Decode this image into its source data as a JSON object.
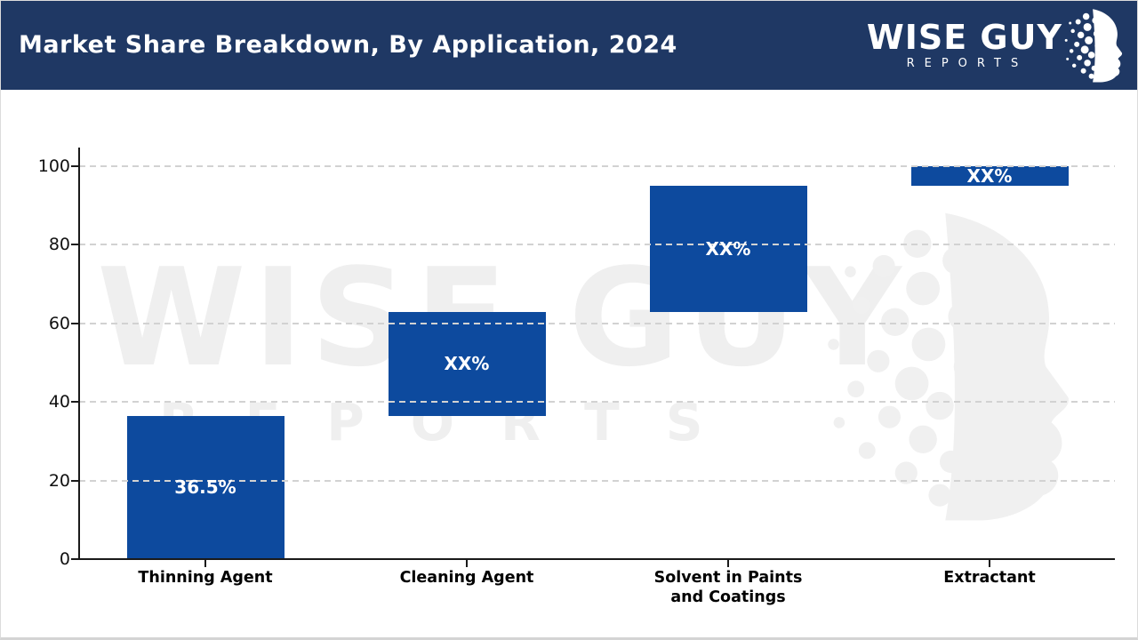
{
  "header": {
    "title": "Market Share Breakdown, By Application, 2024",
    "logo": {
      "line1": "WISE GUY",
      "line2": "REPORTS"
    }
  },
  "watermark": {
    "line1": "WISE GUY",
    "line2": "REPORTS"
  },
  "chart_data": {
    "type": "bar",
    "variant": "waterfall-stacked-segments",
    "title": "Market Share Breakdown, By Application, 2024",
    "categories": [
      "Thinning Agent",
      "Cleaning Agent",
      "Solvent in Paints\nand Coatings",
      "Extractant"
    ],
    "segments": [
      {
        "category": "Thinning Agent",
        "start": 0,
        "end": 36.5,
        "label": "36.5%"
      },
      {
        "category": "Cleaning Agent",
        "start": 36.5,
        "end": 63,
        "label": "XX%"
      },
      {
        "category": "Solvent in Paints and Coatings",
        "start": 63,
        "end": 95,
        "label": "XX%"
      },
      {
        "category": "Extractant",
        "start": 95,
        "end": 100,
        "label": "XX%"
      }
    ],
    "xlabel": "",
    "ylabel": "",
    "y_ticks": [
      0,
      20,
      40,
      60,
      80,
      100
    ],
    "ylim": [
      0,
      100
    ],
    "grid": "horizontal-dashed",
    "legend": "none",
    "bar_color": "#0d4a9e",
    "label_color": "#ffffff"
  },
  "colors": {
    "header_bg": "#1f3864",
    "bar": "#0d4a9e",
    "axis": "#1a1a1a",
    "gridline": "#d2d2d2",
    "watermark": "#efefef"
  }
}
